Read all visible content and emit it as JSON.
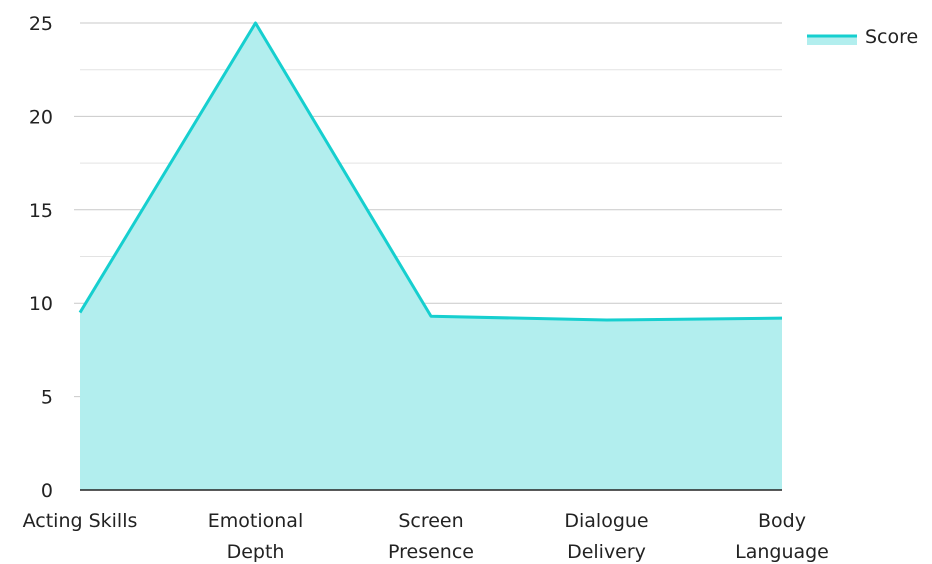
{
  "chart_data": {
    "type": "area",
    "categories": [
      "Acting Skills",
      "Emotional Depth",
      "Screen Presence",
      "Dialogue Delivery",
      "Body Language"
    ],
    "category_lines": [
      [
        "Acting Skills"
      ],
      [
        "Emotional",
        "Depth"
      ],
      [
        "Screen",
        "Presence"
      ],
      [
        "Dialogue",
        "Delivery"
      ],
      [
        "Body",
        "Language"
      ]
    ],
    "series": [
      {
        "name": "Score",
        "values": [
          9.5,
          25,
          9.3,
          9.1,
          9.2
        ],
        "color": "#16cfcf",
        "fill": "#b2eeee"
      }
    ],
    "ylim": [
      0,
      25
    ],
    "yticks": [
      "0",
      "5",
      "10",
      "15",
      "20",
      "25"
    ],
    "grid": true,
    "legend_position": "top-right"
  }
}
